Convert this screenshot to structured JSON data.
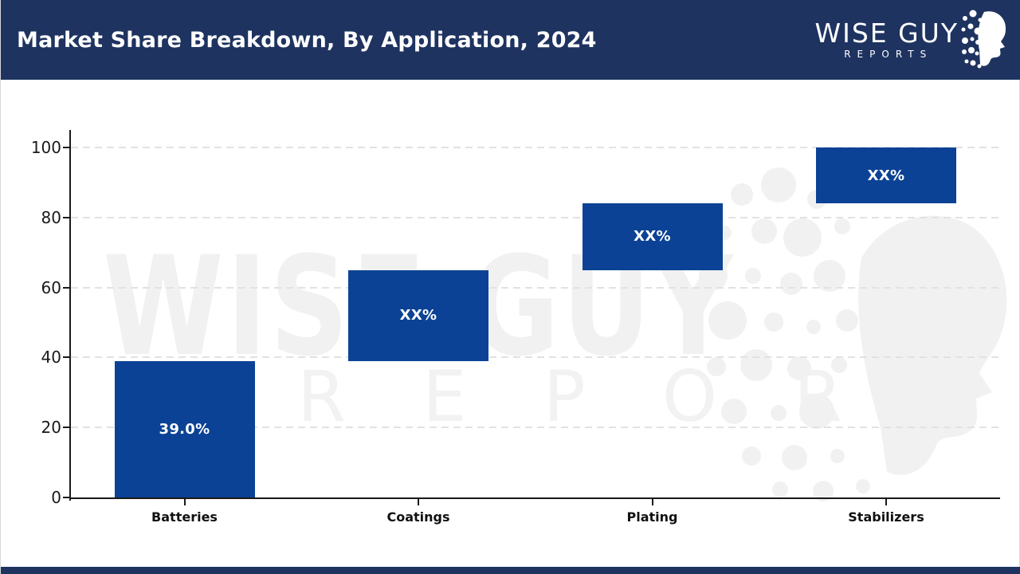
{
  "header": {
    "title": "Market Share Breakdown, By Application, 2024",
    "background_color": "#1e3360",
    "logo": {
      "line1": "WISE GUY",
      "line2": "REPORTS"
    }
  },
  "watermark": {
    "line1": "WISE GUY",
    "line2": "REPORTS"
  },
  "footer": {
    "background_color": "#1e3360"
  },
  "chart_data": {
    "type": "bar",
    "subtype": "waterfall",
    "title": "Market Share Breakdown, By Application, 2024",
    "categories": [
      "Batteries",
      "Coatings",
      "Plating",
      "Stabilizers"
    ],
    "segments": [
      {
        "category": "Batteries",
        "start": 0,
        "end": 39,
        "label": "39.0%"
      },
      {
        "category": "Coatings",
        "start": 39,
        "end": 65,
        "label": "XX%"
      },
      {
        "category": "Plating",
        "start": 65,
        "end": 84,
        "label": "XX%"
      },
      {
        "category": "Stabilizers",
        "start": 84,
        "end": 100,
        "label": "XX%"
      }
    ],
    "yticks": [
      0,
      20,
      40,
      60,
      80,
      100
    ],
    "ylim": [
      0,
      105
    ],
    "xlabel": "",
    "ylabel": "",
    "bar_color": "#0b4295",
    "bar_label_color": "#ffffff",
    "grid": "horizontal-dashed",
    "gridline_color": "#e2e2e2",
    "legend": "none"
  }
}
